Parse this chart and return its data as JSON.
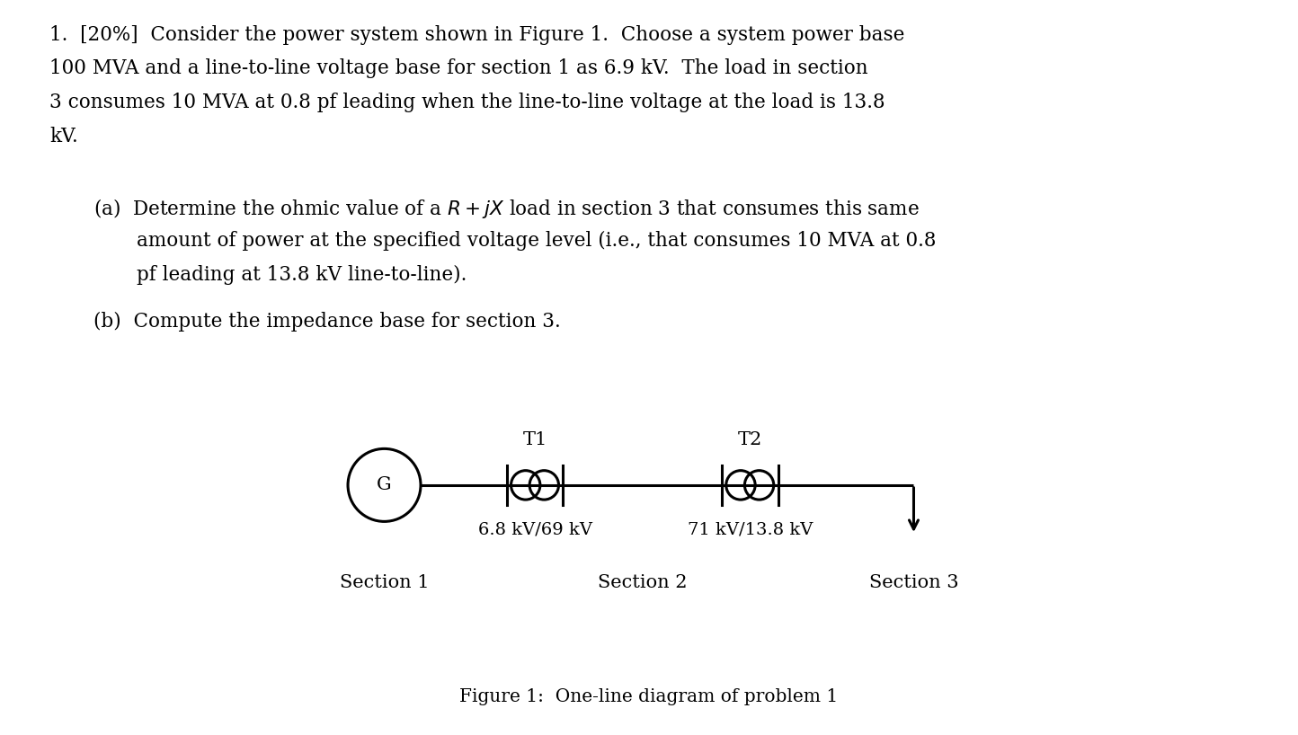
{
  "bg_color": "#ffffff",
  "text_color": "#000000",
  "fig_width": 14.44,
  "fig_height": 8.18,
  "line1": "1.  [20%]  Consider the power system shown in Figure 1.  Choose a system power base",
  "line2": "100 MVA and a line-to-line voltage base for section 1 as 6.9 kV.  The load in section",
  "line3": "3 consumes 10 MVA at 0.8 pf leading when the line-to-line voltage at the load is 13.8",
  "line4": "kV.",
  "suba1": "(a)  Determine the ohmic value of a $R+jX$ load in section 3 that consumes this same",
  "suba2": "amount of power at the specified voltage level (i.e., that consumes 10 MVA at 0.8",
  "suba3": "pf leading at 13.8 kV line-to-line).",
  "subb": "(b)  Compute the impedance base for section 3.",
  "figure_caption": "Figure 1:  One-line diagram of problem 1",
  "T1_label": "T1",
  "T2_label": "T2",
  "T1_rating": "6.8 kV/69 kV",
  "T2_rating": "71 kV/13.8 kV",
  "section1_label": "Section 1",
  "section2_label": "Section 2",
  "section3_label": "Section 3",
  "G_label": "G",
  "fontsize_main": 15.5,
  "fontsize_diagram": 15,
  "fontsize_caption": 14.5
}
